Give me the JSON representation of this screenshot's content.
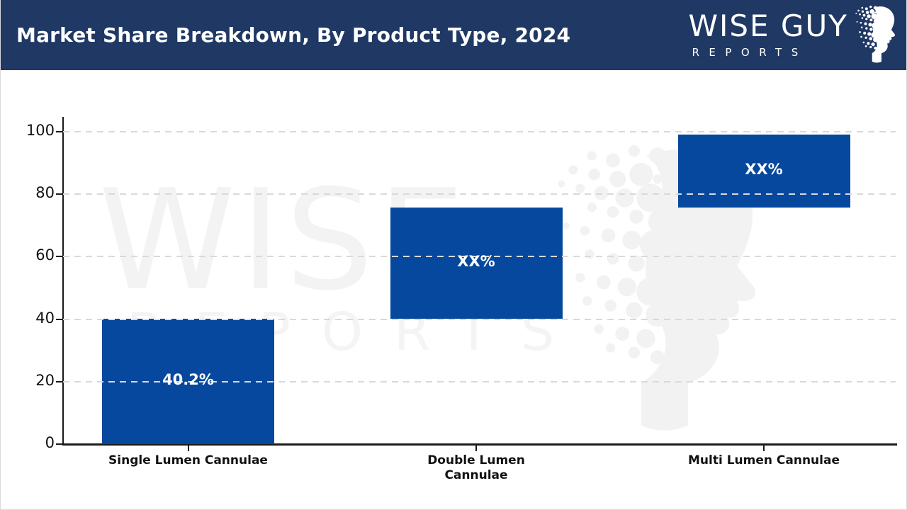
{
  "header": {
    "title": "Market Share Breakdown, By Product Type, 2024",
    "logo": {
      "wordmark": "WISE GUY",
      "subtext": "REPORTS"
    }
  },
  "watermark": {
    "word": "WISE",
    "subword": "REPORTS"
  },
  "colors": {
    "header_bg": "#1F3864",
    "bar": "#05489D",
    "grid": "#D9D9D9",
    "axis": "#1A1A1A",
    "value_label": "#FFFFFF",
    "watermark": "#F2F2F2"
  },
  "chart_data": {
    "type": "bar",
    "subtype": "stacked-waterfall-percent",
    "title": "Market Share Breakdown, By Product Type, 2024",
    "categories": [
      "Single Lumen Cannulae",
      "Double Lumen Cannulae",
      "Multi Lumen Cannulae"
    ],
    "bars": [
      {
        "category": "Single Lumen Cannulae",
        "start": 0,
        "end": 40.2,
        "label": "40.2%"
      },
      {
        "category": "Double Lumen Cannulae",
        "start": 40.2,
        "end": 75.7,
        "label": "XX%"
      },
      {
        "category": "Multi Lumen Cannulae",
        "start": 75.7,
        "end": 99.2,
        "label": "XX%"
      }
    ],
    "xlabel": "",
    "ylabel": "",
    "ylim": [
      0,
      100
    ],
    "yticks": [
      0,
      20,
      40,
      60,
      80,
      100
    ],
    "grid": true,
    "grid_style": "dashed",
    "grid_over_bars": true,
    "legend": "none"
  }
}
